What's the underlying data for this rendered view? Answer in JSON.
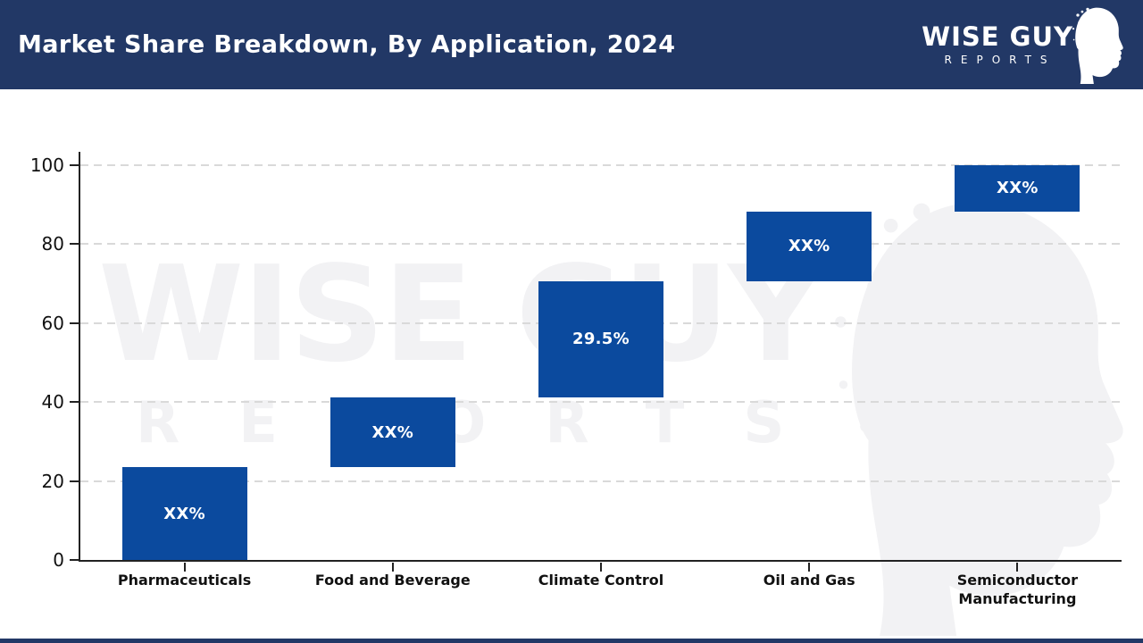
{
  "header": {
    "title": "Market Share Breakdown, By Application, 2024",
    "logo": {
      "name": "WISE GUY",
      "subtitle": "REPORTS"
    }
  },
  "watermark": {
    "line1": "WISE GUY",
    "line2": "REPORTS"
  },
  "chart_data": {
    "type": "bar",
    "subtype": "waterfall",
    "title": "Market Share Breakdown, By Application, 2024",
    "categories": [
      "Pharmaceuticals",
      "Food and Beverage",
      "Climate Control",
      "Oil and Gas",
      "Semiconductor Manufacturing"
    ],
    "segments": [
      {
        "category": "Pharmaceuticals",
        "label": "XX%",
        "start": 0,
        "end": 23.5
      },
      {
        "category": "Food and Beverage",
        "label": "XX%",
        "start": 23.5,
        "end": 41.2
      },
      {
        "category": "Climate Control",
        "label": "29.5%",
        "start": 41.2,
        "end": 70.7
      },
      {
        "category": "Oil and Gas",
        "label": "XX%",
        "start": 70.7,
        "end": 88.3
      },
      {
        "category": "Semiconductor Manufacturing",
        "label": "XX%",
        "start": 88.3,
        "end": 100
      }
    ],
    "ylim": [
      0,
      100
    ],
    "yticks": [
      0,
      20,
      40,
      60,
      80,
      100
    ],
    "grid": "horizontal-dashed",
    "legend": "none",
    "colors": {
      "bar": "#0b4a9e",
      "header_bg": "#223866",
      "grid": "#d9d9d9",
      "axis": "#222222",
      "watermark": "#f2f2f4",
      "bar_label_text": "#ffffff"
    }
  }
}
